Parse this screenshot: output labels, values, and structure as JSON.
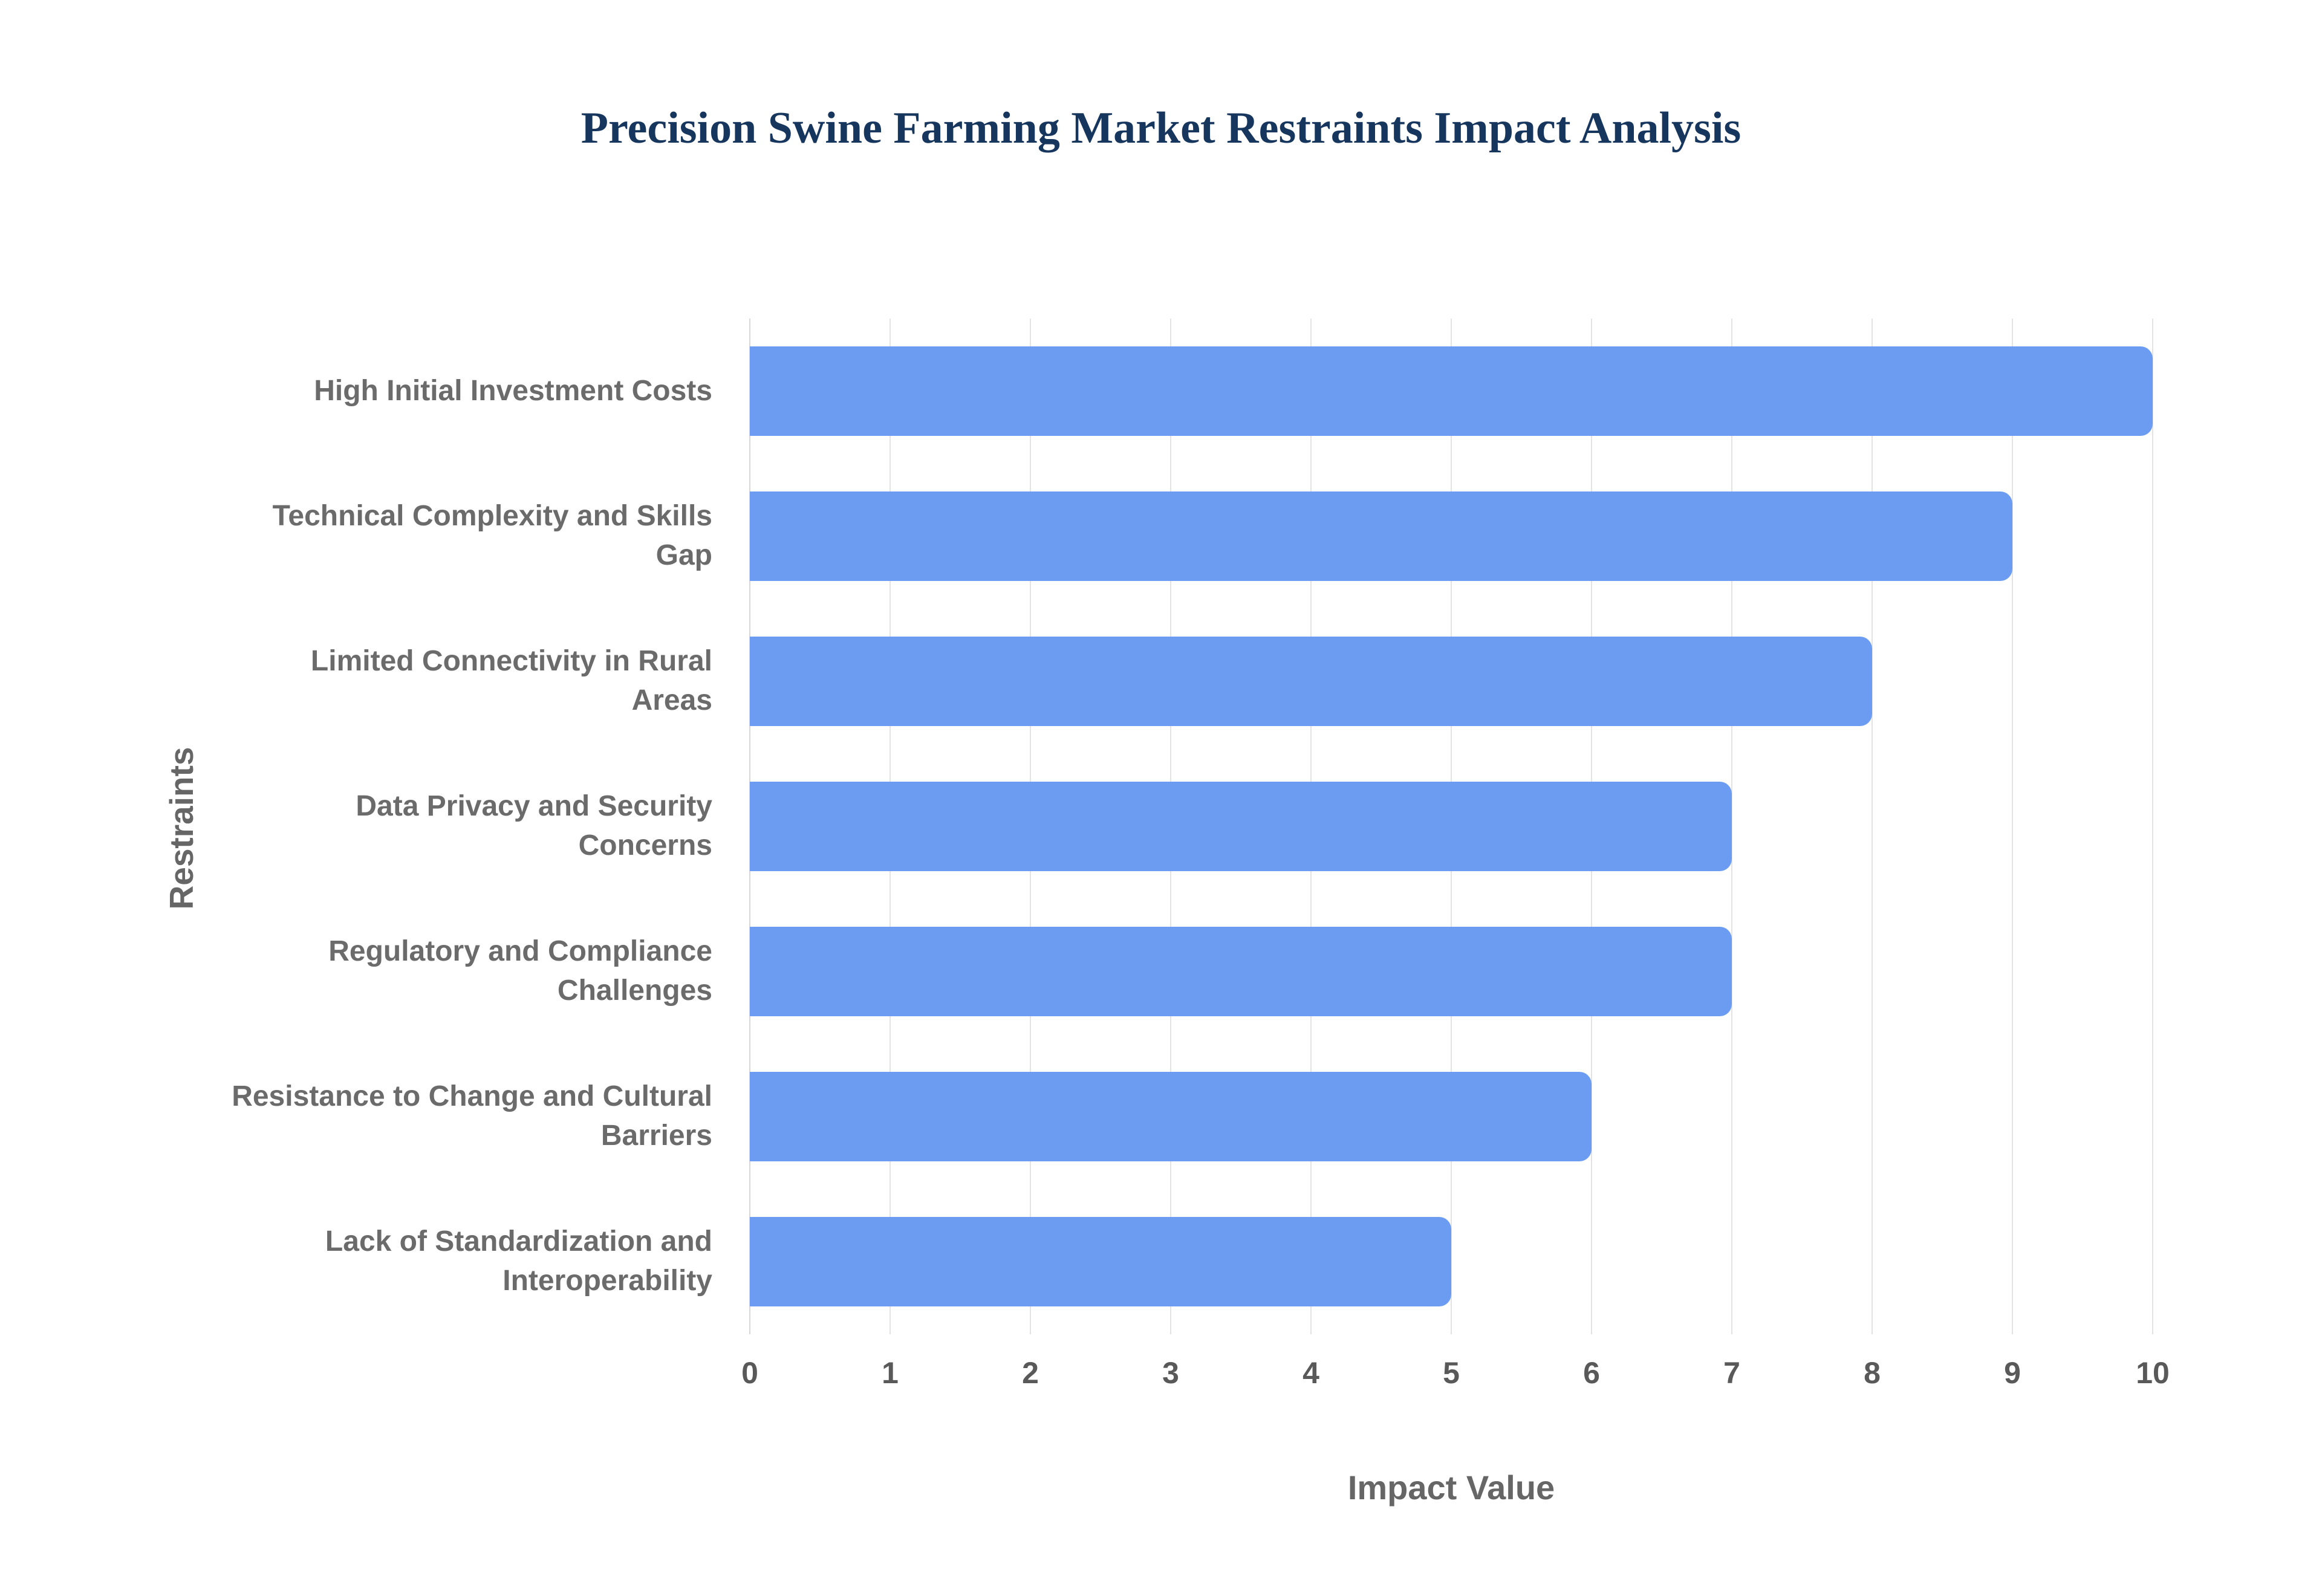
{
  "chart_data": {
    "type": "bar",
    "orientation": "horizontal",
    "title": "Precision Swine Farming Market Restraints Impact Analysis",
    "xlabel": "Impact Value",
    "ylabel": "Restraints",
    "categories": [
      "High Initial Investment Costs",
      "Technical Complexity and Skills Gap",
      "Limited Connectivity in Rural Areas",
      "Data Privacy and Security Concerns",
      "Regulatory and Compliance Challenges",
      "Resistance to Change and Cultural Barriers",
      "Lack of Standardization and Interoperability"
    ],
    "values": [
      10,
      9,
      8,
      7,
      7,
      6,
      5
    ],
    "xlim": [
      0,
      10
    ],
    "xticks": [
      0,
      1,
      2,
      3,
      4,
      5,
      6,
      7,
      8,
      9,
      10
    ],
    "grid": true,
    "legend": false,
    "colors": {
      "bar": "#6C9BF2",
      "title": "#17365D",
      "category_label": "#6b6b6b",
      "tick_label": "#595959",
      "gridline": "#e3e3e3"
    }
  }
}
